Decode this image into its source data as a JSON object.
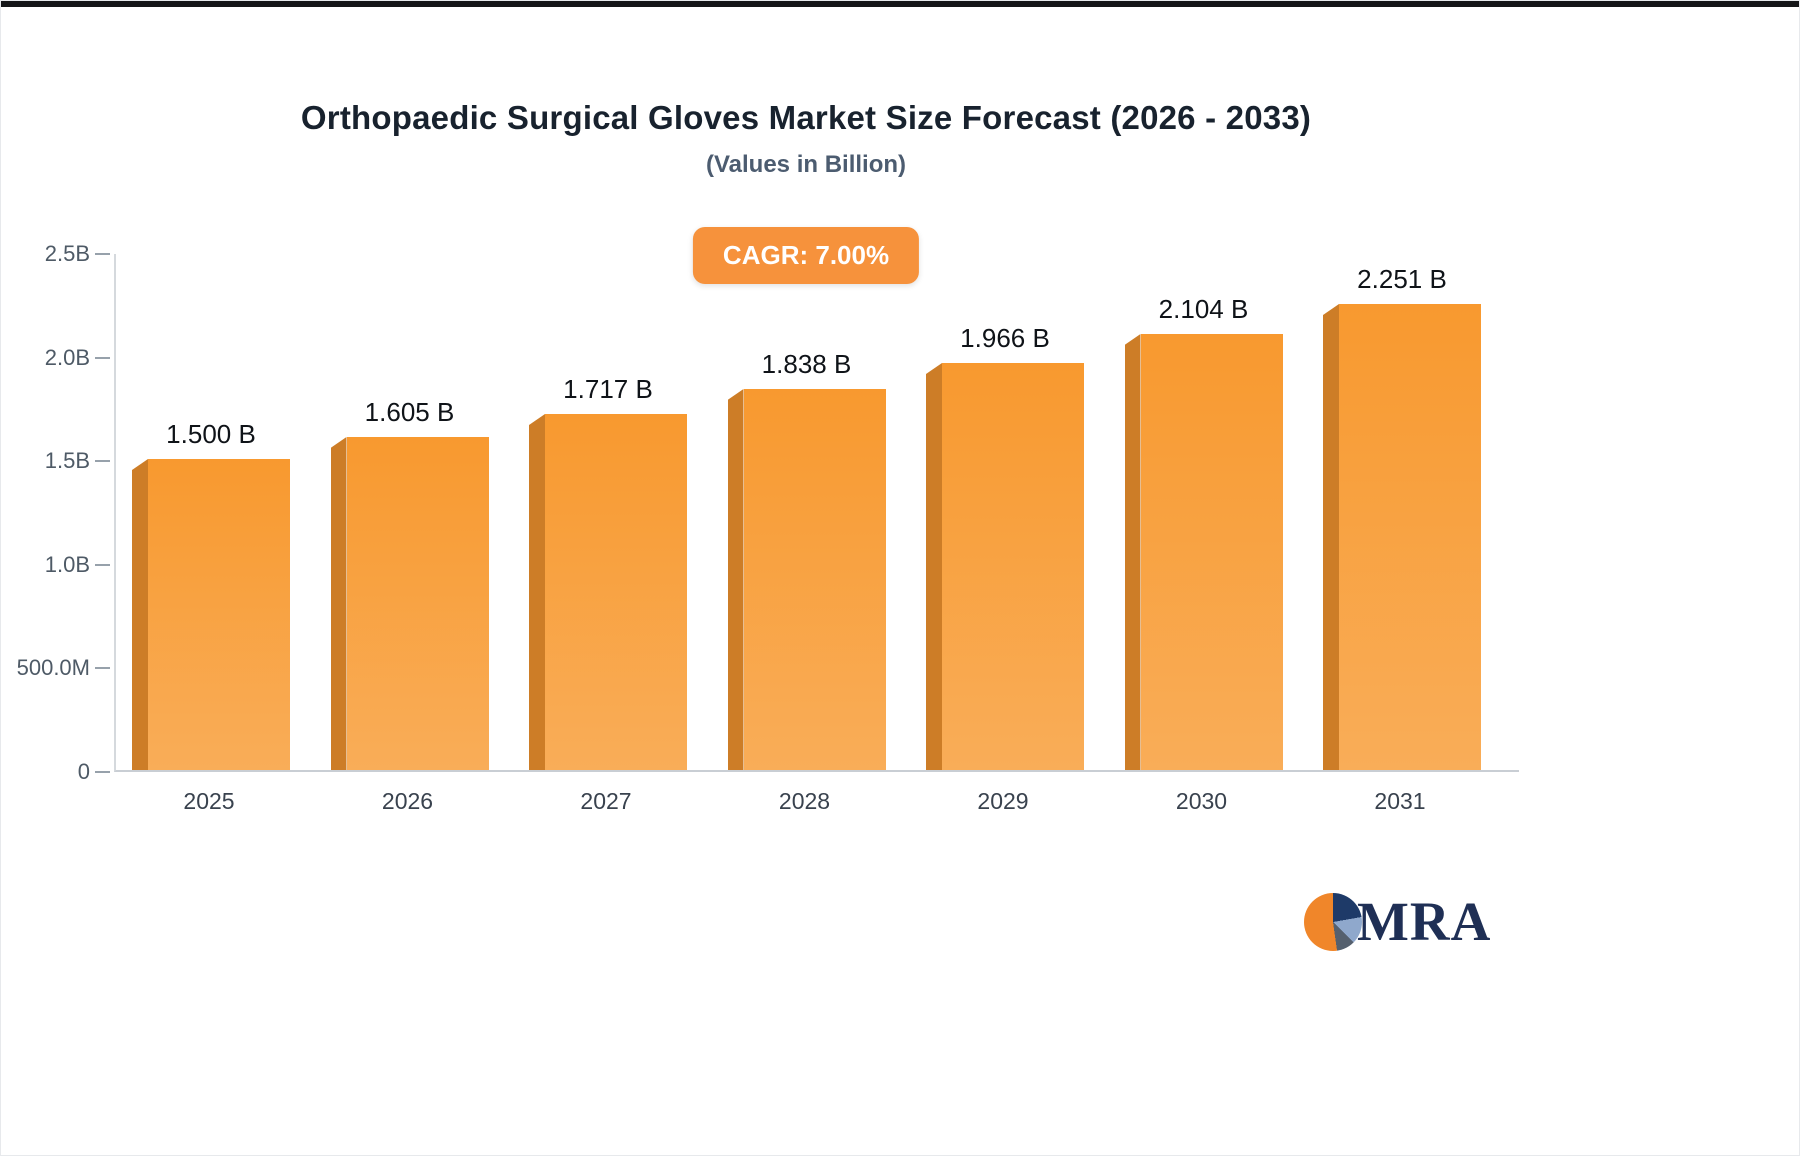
{
  "chart_data": {
    "type": "bar",
    "title": "Orthopaedic Surgical Gloves Market Size Forecast (2026 - 2033)",
    "subtitle": "(Values in Billion)",
    "cagr_label": "CAGR: 7.00%",
    "categories": [
      "2025",
      "2026",
      "2027",
      "2028",
      "2029",
      "2030",
      "2031"
    ],
    "values": [
      1.5,
      1.605,
      1.717,
      1.838,
      1.966,
      2.104,
      2.251
    ],
    "value_labels": [
      "1.500 B",
      "1.605 B",
      "1.717 B",
      "1.838 B",
      "1.966 B",
      "2.104 B",
      "2.251 B"
    ],
    "unit": "Billion",
    "ylim": [
      0,
      2.5
    ],
    "yticks": [
      {
        "label": "2.5B",
        "value": 2.5
      },
      {
        "label": "2.0B",
        "value": 2.0
      },
      {
        "label": "1.5B",
        "value": 1.5
      },
      {
        "label": "1.0B",
        "value": 1.0
      },
      {
        "label": "500.0M",
        "value": 0.5
      },
      {
        "label": "0",
        "value": 0
      }
    ],
    "grid": false,
    "legend": "none",
    "colors": {
      "bar_face_top": "#f8992f",
      "bar_face_bottom": "#f9ad58",
      "bar_edge": "#cd7d27",
      "badge_bg": "#f6923c",
      "axis_line": "#d5d9dd",
      "tick_text": "#4e5a66"
    }
  },
  "logo": {
    "text": "MRA"
  }
}
